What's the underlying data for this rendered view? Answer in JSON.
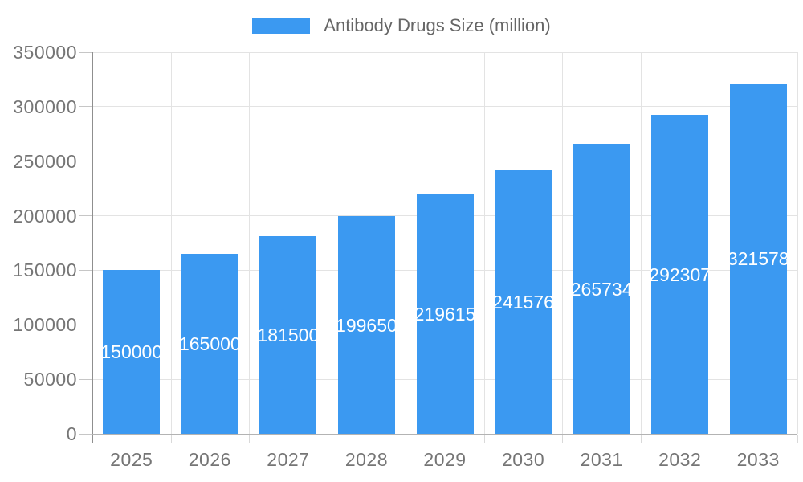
{
  "chart_data": {
    "type": "bar",
    "title": "",
    "xlabel": "",
    "ylabel": "",
    "legend": {
      "label": "Antibody Drugs Size (million)"
    },
    "legend_position": "top-center",
    "categories": [
      "2025",
      "2026",
      "2027",
      "2028",
      "2029",
      "2030",
      "2031",
      "2032",
      "2033"
    ],
    "series": [
      {
        "name": "Antibody Drugs Size (million)",
        "values": [
          150000,
          165000,
          181500,
          199650,
          219615,
          241576,
          265734,
          292307,
          321578
        ]
      }
    ],
    "value_labels": [
      "150000",
      "165000",
      "181500",
      "199650",
      "219615",
      "241576",
      "265734",
      "292307",
      "321578"
    ],
    "value_label_position": "inside-center",
    "ylim": [
      0,
      350000
    ],
    "ytick_step": 50000,
    "yticks": [
      "0",
      "50000",
      "100000",
      "150000",
      "200000",
      "250000",
      "300000",
      "350000"
    ],
    "grid": true,
    "colors": {
      "bar": "#3b99f1",
      "value_label": "#ffffff",
      "axis_text": "#757575",
      "legend_text": "#666666",
      "gridline": "#e3e3e3",
      "axis_line": "#8f8f8f",
      "baseline": "#b3b3b3",
      "tick": "#d9d9d9",
      "background": "#ffffff"
    }
  }
}
